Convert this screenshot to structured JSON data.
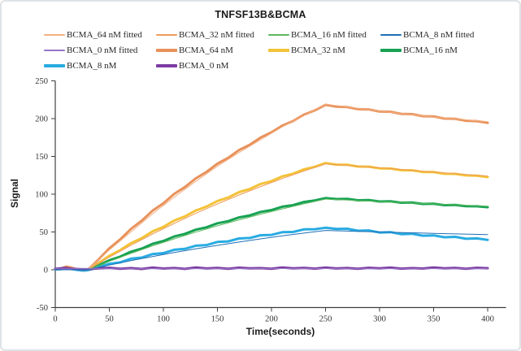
{
  "chart_data": {
    "type": "line",
    "title": "TNFSF13B&BCMA",
    "xlabel": "Time(seconds)",
    "ylabel": "Signal",
    "xlim": [
      0,
      417
    ],
    "ylim": [
      -50,
      250
    ],
    "x_ticks": [
      0,
      50,
      100,
      150,
      200,
      250,
      300,
      350,
      400
    ],
    "y_ticks": [
      -50,
      0,
      50,
      100,
      150,
      200,
      250
    ],
    "grid": false,
    "legend_position": "top",
    "axis_color": "#3f3f3f",
    "series": [
      {
        "name": "BCMA_64 nM fitted",
        "color": "#F4B183",
        "width": 1,
        "points": [
          [
            0,
            0
          ],
          [
            30,
            0
          ],
          [
            50,
            26
          ],
          [
            70,
            50
          ],
          [
            90,
            74
          ],
          [
            110,
            96
          ],
          [
            130,
            117
          ],
          [
            150,
            137
          ],
          [
            170,
            155
          ],
          [
            190,
            172
          ],
          [
            210,
            189
          ],
          [
            230,
            204
          ],
          [
            250,
            219
          ],
          [
            300,
            210
          ],
          [
            350,
            202
          ],
          [
            400,
            196
          ]
        ]
      },
      {
        "name": "BCMA_32 nM fitted",
        "color": "#EF9D5B",
        "width": 1,
        "points": [
          [
            0,
            0
          ],
          [
            30,
            0
          ],
          [
            50,
            16.7
          ],
          [
            70,
            32.4
          ],
          [
            90,
            47.3
          ],
          [
            110,
            61.3
          ],
          [
            130,
            74.6
          ],
          [
            150,
            87.1
          ],
          [
            170,
            98.9
          ],
          [
            190,
            110.1
          ],
          [
            210,
            120.6
          ],
          [
            230,
            130.6
          ],
          [
            250,
            140
          ],
          [
            300,
            134.9
          ],
          [
            350,
            129.4
          ],
          [
            400,
            124
          ]
        ]
      },
      {
        "name": "BCMA_16 nM fitted",
        "color": "#5CB85C",
        "width": 1,
        "points": [
          [
            0,
            0
          ],
          [
            30,
            0
          ],
          [
            50,
            11.1
          ],
          [
            70,
            21.6
          ],
          [
            90,
            31.5
          ],
          [
            110,
            40.9
          ],
          [
            130,
            49.8
          ],
          [
            150,
            58.2
          ],
          [
            170,
            66
          ],
          [
            190,
            73.5
          ],
          [
            210,
            80.5
          ],
          [
            230,
            87.2
          ],
          [
            250,
            93.5
          ],
          [
            300,
            90.3
          ],
          [
            350,
            87.1
          ],
          [
            400,
            84
          ]
        ]
      },
      {
        "name": "BCMA_8 nM fitted",
        "color": "#1F6FB5",
        "width": 1,
        "points": [
          [
            0,
            0
          ],
          [
            30,
            0
          ],
          [
            50,
            6.2
          ],
          [
            70,
            12
          ],
          [
            90,
            17.5
          ],
          [
            110,
            22.8
          ],
          [
            130,
            27.7
          ],
          [
            150,
            32.3
          ],
          [
            170,
            36.7
          ],
          [
            190,
            40.9
          ],
          [
            210,
            44.8
          ],
          [
            230,
            48.5
          ],
          [
            250,
            52
          ],
          [
            300,
            50
          ],
          [
            350,
            48.2
          ],
          [
            400,
            46.5
          ]
        ]
      },
      {
        "name": "BCMA_0 nM fitted",
        "color": "#9676C8",
        "width": 1,
        "points": [
          [
            0,
            1.5
          ],
          [
            100,
            1.4
          ],
          [
            200,
            1.6
          ],
          [
            300,
            1.5
          ],
          [
            400,
            1.5
          ]
        ]
      },
      {
        "name": "BCMA_64 nM",
        "color": "#E8915A",
        "width": 3,
        "points": [
          [
            0,
            0.8
          ],
          [
            5,
            1.5
          ],
          [
            10,
            4.2
          ],
          [
            15,
            2.8
          ],
          [
            20,
            0.5
          ],
          [
            25,
            -1.2
          ],
          [
            30,
            -0.5
          ],
          [
            40,
            13.6
          ],
          [
            50,
            28.4
          ],
          [
            60,
            40.1
          ],
          [
            70,
            54.0
          ],
          [
            80,
            65.0
          ],
          [
            90,
            78.2
          ],
          [
            100,
            88.0
          ],
          [
            110,
            100.4
          ],
          [
            120,
            109.5
          ],
          [
            130,
            121.0
          ],
          [
            140,
            129.6
          ],
          [
            150,
            140.3
          ],
          [
            160,
            148.2
          ],
          [
            170,
            158.4
          ],
          [
            180,
            165.5
          ],
          [
            190,
            175.1
          ],
          [
            200,
            181.8
          ],
          [
            210,
            190.8
          ],
          [
            220,
            196.8
          ],
          [
            230,
            205.2
          ],
          [
            240,
            210.9
          ],
          [
            250,
            218.3
          ],
          [
            260,
            215.8
          ],
          [
            270,
            215.3
          ],
          [
            280,
            212.6
          ],
          [
            290,
            212.1
          ],
          [
            300,
            209.4
          ],
          [
            310,
            209.0
          ],
          [
            320,
            206.3
          ],
          [
            330,
            205.9
          ],
          [
            340,
            203.2
          ],
          [
            350,
            202.8
          ],
          [
            360,
            200.1
          ],
          [
            370,
            199.7
          ],
          [
            380,
            197.2
          ],
          [
            390,
            196.7
          ],
          [
            400,
            194.5
          ]
        ]
      },
      {
        "name": "BCMA_32 nM",
        "color": "#F3C237",
        "width": 3,
        "points": [
          [
            0,
            0.5
          ],
          [
            5,
            1.2
          ],
          [
            10,
            2.2
          ],
          [
            15,
            1.6
          ],
          [
            20,
            0.3
          ],
          [
            25,
            -1.0
          ],
          [
            30,
            -0.3
          ],
          [
            40,
            8.6
          ],
          [
            50,
            18.5
          ],
          [
            60,
            25.9
          ],
          [
            70,
            35.2
          ],
          [
            80,
            41.8
          ],
          [
            90,
            50.7
          ],
          [
            100,
            56.8
          ],
          [
            110,
            65.1
          ],
          [
            120,
            70.6
          ],
          [
            130,
            78.4
          ],
          [
            140,
            83.7
          ],
          [
            150,
            91.0
          ],
          [
            160,
            95.6
          ],
          [
            170,
            102.7
          ],
          [
            180,
            106.9
          ],
          [
            190,
            113.5
          ],
          [
            200,
            117.3
          ],
          [
            210,
            123.6
          ],
          [
            220,
            127.1
          ],
          [
            230,
            132.9
          ],
          [
            240,
            136.2
          ],
          [
            250,
            141.2
          ],
          [
            260,
            139.1
          ],
          [
            270,
            139.0
          ],
          [
            280,
            136.6
          ],
          [
            290,
            136.5
          ],
          [
            300,
            134.2
          ],
          [
            310,
            134.0
          ],
          [
            320,
            131.7
          ],
          [
            330,
            131.6
          ],
          [
            340,
            129.4
          ],
          [
            350,
            129.2
          ],
          [
            360,
            127.0
          ],
          [
            370,
            126.9
          ],
          [
            380,
            124.8
          ],
          [
            390,
            124.5
          ],
          [
            400,
            122.7
          ]
        ]
      },
      {
        "name": "BCMA_16 nM",
        "color": "#17A253",
        "width": 3,
        "points": [
          [
            0,
            0.6
          ],
          [
            5,
            1.0
          ],
          [
            10,
            1.8
          ],
          [
            15,
            1.2
          ],
          [
            20,
            0.2
          ],
          [
            25,
            -0.8
          ],
          [
            30,
            -0.4
          ],
          [
            40,
            5.7
          ],
          [
            50,
            12.6
          ],
          [
            60,
            17.3
          ],
          [
            70,
            23.9
          ],
          [
            80,
            28.0
          ],
          [
            90,
            34.3
          ],
          [
            100,
            38.1
          ],
          [
            110,
            44.0
          ],
          [
            120,
            47.5
          ],
          [
            130,
            53.0
          ],
          [
            140,
            56.2
          ],
          [
            150,
            61.5
          ],
          [
            160,
            64.3
          ],
          [
            170,
            69.3
          ],
          [
            180,
            71.9
          ],
          [
            190,
            76.6
          ],
          [
            200,
            79.0
          ],
          [
            210,
            83.4
          ],
          [
            220,
            85.5
          ],
          [
            230,
            89.7
          ],
          [
            240,
            91.7
          ],
          [
            250,
            94.8
          ],
          [
            260,
            93.6
          ],
          [
            270,
            93.8
          ],
          [
            280,
            91.9
          ],
          [
            290,
            92.1
          ],
          [
            300,
            90.3
          ],
          [
            310,
            90.5
          ],
          [
            320,
            88.7
          ],
          [
            330,
            88.9
          ],
          [
            340,
            87.1
          ],
          [
            350,
            87.3
          ],
          [
            360,
            85.5
          ],
          [
            370,
            85.7
          ],
          [
            380,
            84.1
          ],
          [
            390,
            84.0
          ],
          [
            400,
            82.8
          ]
        ]
      },
      {
        "name": "BCMA_8 nM",
        "color": "#29ABE2",
        "width": 3,
        "points": [
          [
            0,
            0.4
          ],
          [
            5,
            0.9
          ],
          [
            10,
            1.5
          ],
          [
            15,
            1.0
          ],
          [
            20,
            -0.2
          ],
          [
            25,
            -1.0
          ],
          [
            30,
            -0.6
          ],
          [
            40,
            3.0
          ],
          [
            50,
            7.9
          ],
          [
            60,
            9.8
          ],
          [
            70,
            14.6
          ],
          [
            80,
            16.1
          ],
          [
            90,
            20.8
          ],
          [
            100,
            22.0
          ],
          [
            110,
            26.5
          ],
          [
            120,
            27.6
          ],
          [
            130,
            31.8
          ],
          [
            140,
            32.7
          ],
          [
            150,
            36.8
          ],
          [
            160,
            37.5
          ],
          [
            170,
            41.4
          ],
          [
            180,
            42.0
          ],
          [
            190,
            45.7
          ],
          [
            200,
            46.1
          ],
          [
            210,
            49.7
          ],
          [
            220,
            50.0
          ],
          [
            230,
            53.4
          ],
          [
            240,
            53.7
          ],
          [
            250,
            55.6
          ],
          [
            260,
            54.1
          ],
          [
            270,
            54.3
          ],
          [
            280,
            51.6
          ],
          [
            290,
            52.0
          ],
          [
            300,
            49.3
          ],
          [
            310,
            49.8
          ],
          [
            320,
            47.1
          ],
          [
            330,
            47.6
          ],
          [
            340,
            45.0
          ],
          [
            350,
            45.5
          ],
          [
            360,
            43.0
          ],
          [
            370,
            43.5
          ],
          [
            380,
            41.0
          ],
          [
            390,
            41.5
          ],
          [
            400,
            39.5
          ]
        ]
      },
      {
        "name": "BCMA_0 nM",
        "color": "#7D3CA3",
        "width": 3,
        "points": [
          [
            0,
            1.2
          ],
          [
            5,
            1.8
          ],
          [
            10,
            2.4
          ],
          [
            15,
            1.4
          ],
          [
            20,
            1.0
          ],
          [
            25,
            0.6
          ],
          [
            30,
            0.8
          ],
          [
            40,
            1.8
          ],
          [
            50,
            2.6
          ],
          [
            60,
            1.4
          ],
          [
            70,
            2.2
          ],
          [
            80,
            1.1
          ],
          [
            90,
            2.8
          ],
          [
            100,
            1.6
          ],
          [
            110,
            2.3
          ],
          [
            120,
            1.2
          ],
          [
            130,
            2.9
          ],
          [
            140,
            1.7
          ],
          [
            150,
            2.4
          ],
          [
            160,
            1.3
          ],
          [
            170,
            2.7
          ],
          [
            180,
            1.8
          ],
          [
            190,
            2.2
          ],
          [
            200,
            1.4
          ],
          [
            210,
            3.0
          ],
          [
            220,
            1.9
          ],
          [
            230,
            2.5
          ],
          [
            240,
            1.5
          ],
          [
            250,
            2.8
          ],
          [
            260,
            1.7
          ],
          [
            270,
            2.3
          ],
          [
            280,
            1.3
          ],
          [
            290,
            2.6
          ],
          [
            300,
            1.9
          ],
          [
            310,
            2.8
          ],
          [
            320,
            1.5
          ],
          [
            330,
            2.2
          ],
          [
            340,
            1.6
          ],
          [
            350,
            2.9
          ],
          [
            360,
            1.8
          ],
          [
            370,
            2.4
          ],
          [
            380,
            1.4
          ],
          [
            390,
            2.6
          ],
          [
            400,
            2.0
          ]
        ]
      }
    ]
  }
}
